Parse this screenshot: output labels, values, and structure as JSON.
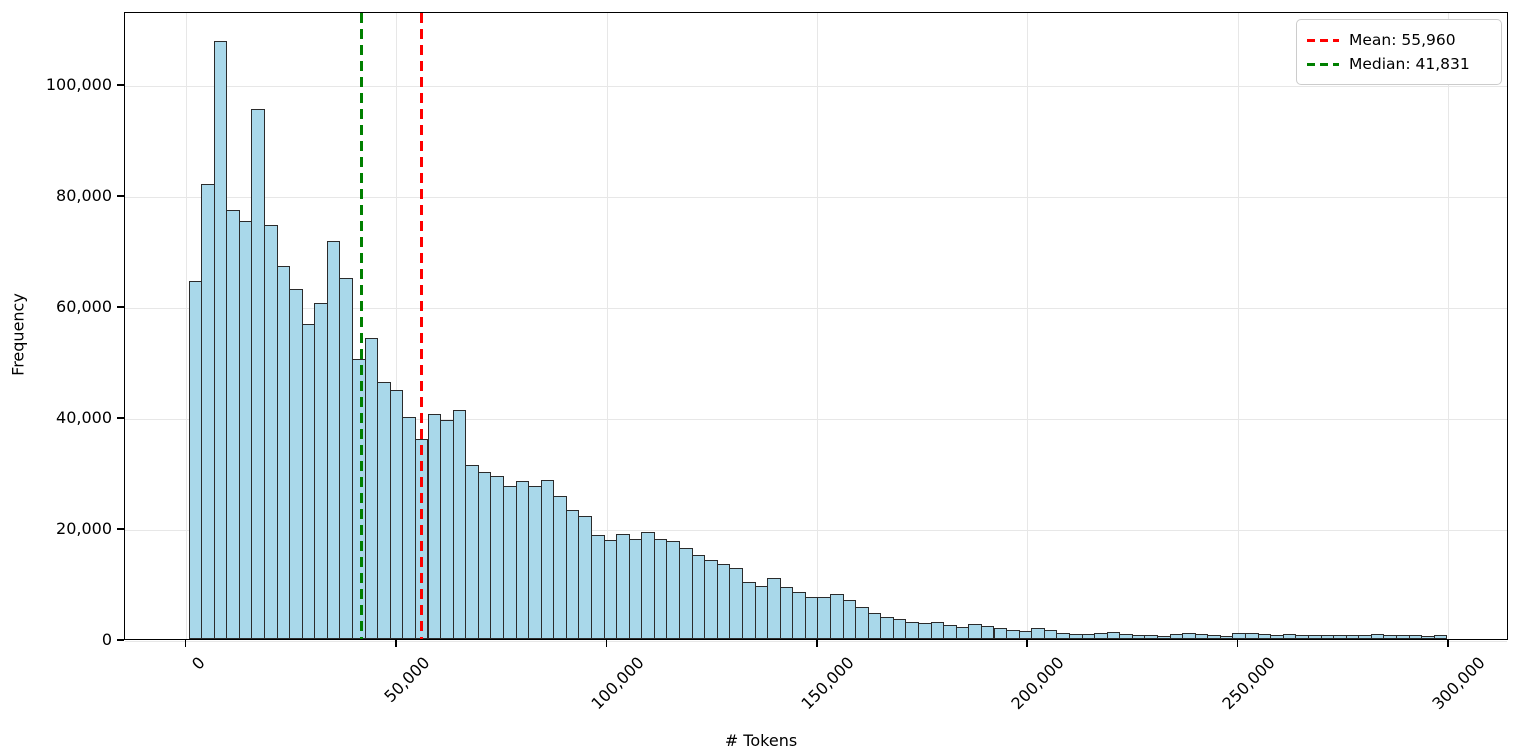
{
  "chart_data": {
    "type": "bar",
    "subtype": "histogram",
    "title": "",
    "xlabel": "# Tokens",
    "ylabel": "Frequency",
    "xlim": [
      -14500,
      314500
    ],
    "ylim": [
      0,
      113200
    ],
    "grid": true,
    "bar_fill": "#a9d8ea",
    "bar_edge": "#2b2b2b",
    "bin_start": 600,
    "bin_width": 2990,
    "values": [
      64500,
      82000,
      107800,
      77300,
      75300,
      95500,
      74700,
      67300,
      63100,
      56700,
      60500,
      71700,
      65100,
      50400,
      54300,
      46400,
      44800,
      40000,
      36100,
      40600,
      39400,
      41200,
      31400,
      30100,
      29400,
      27600,
      28500,
      27500,
      28600,
      25800,
      23200,
      22100,
      18800,
      17800,
      18900,
      18100,
      19200,
      18100,
      17700,
      16400,
      15200,
      14300,
      13500,
      12800,
      10200,
      9600,
      11000,
      9400,
      8400,
      7600,
      7600,
      8100,
      7000,
      5800,
      4600,
      4000,
      3600,
      3100,
      2800,
      3100,
      2500,
      2100,
      2650,
      2350,
      1900,
      1600,
      1400,
      1900,
      1600,
      1100,
      900,
      900,
      1000,
      1300,
      900,
      700,
      700,
      600,
      900,
      1000,
      900,
      700,
      600,
      1100,
      1000,
      900,
      800,
      900,
      800,
      800,
      700,
      800,
      700,
      700,
      900,
      700,
      800,
      700,
      600,
      700
    ],
    "x_ticks": [
      0,
      50000,
      100000,
      150000,
      200000,
      250000,
      300000
    ],
    "x_tick_labels": [
      "0",
      "50,000",
      "100,000",
      "150,000",
      "200,000",
      "250,000",
      "300,000"
    ],
    "y_ticks": [
      0,
      20000,
      40000,
      60000,
      80000,
      100000
    ],
    "y_tick_labels": [
      "0",
      "20,000",
      "40,000",
      "60,000",
      "80,000",
      "100,000"
    ],
    "mean_line": {
      "value": 55960,
      "color": "#ff0000",
      "style": "dashed"
    },
    "median_line": {
      "value": 41831,
      "color": "#008000",
      "style": "dashed"
    },
    "legend": {
      "position": "top-right",
      "entries": [
        {
          "label": "Mean: 55,960",
          "color": "#ff0000"
        },
        {
          "label": "Median: 41,831",
          "color": "#008000"
        }
      ]
    }
  }
}
